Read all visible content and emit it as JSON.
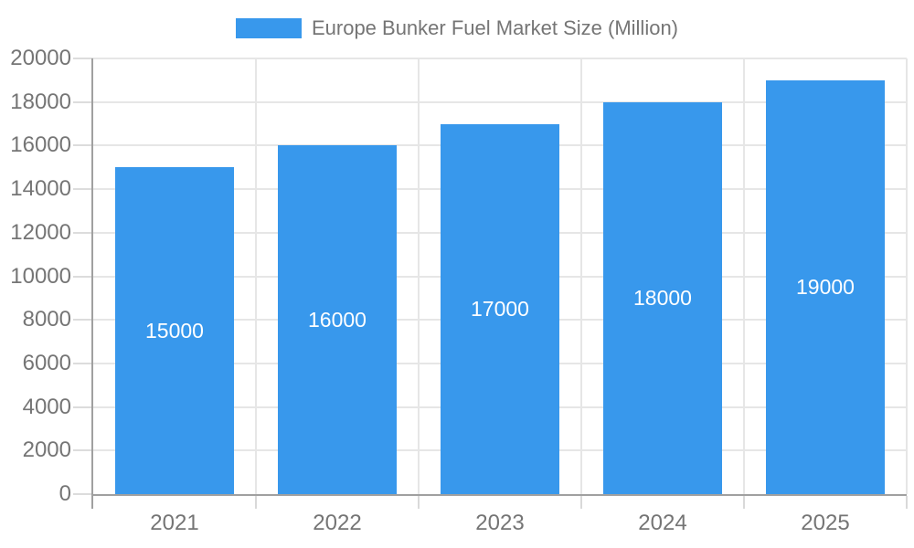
{
  "chart_data": {
    "type": "bar",
    "title": "Europe Bunker Fuel Market Size (Million)",
    "legend": {
      "position": "top",
      "entries": [
        {
          "label": "Europe Bunker Fuel Market Size (Million)",
          "color": "#3898ec"
        }
      ]
    },
    "categories": [
      "2021",
      "2022",
      "2023",
      "2024",
      "2025"
    ],
    "series": [
      {
        "name": "Europe Bunker Fuel Market Size (Million)",
        "values": [
          15000,
          16000,
          17000,
          18000,
          19000
        ]
      }
    ],
    "bar_value_labels": [
      "15000",
      "16000",
      "17000",
      "18000",
      "19000"
    ],
    "xlabel": "",
    "ylabel": "",
    "ylim": [
      0,
      20000
    ],
    "ytick_step": 2000,
    "ytick_labels": [
      "0",
      "2000",
      "4000",
      "6000",
      "8000",
      "10000",
      "12000",
      "14000",
      "16000",
      "18000",
      "20000"
    ],
    "grid": true,
    "colors": {
      "bar": "#3898ec",
      "bar_label": "#ffffff",
      "axis_line": "#a0a0a0",
      "gridline": "#e6e6e6",
      "y_tick": "#dcdcdc",
      "x_tick": "#d9d9d9",
      "tick_label": "#757575",
      "legend_text": "#757575",
      "background": "#ffffff"
    }
  }
}
